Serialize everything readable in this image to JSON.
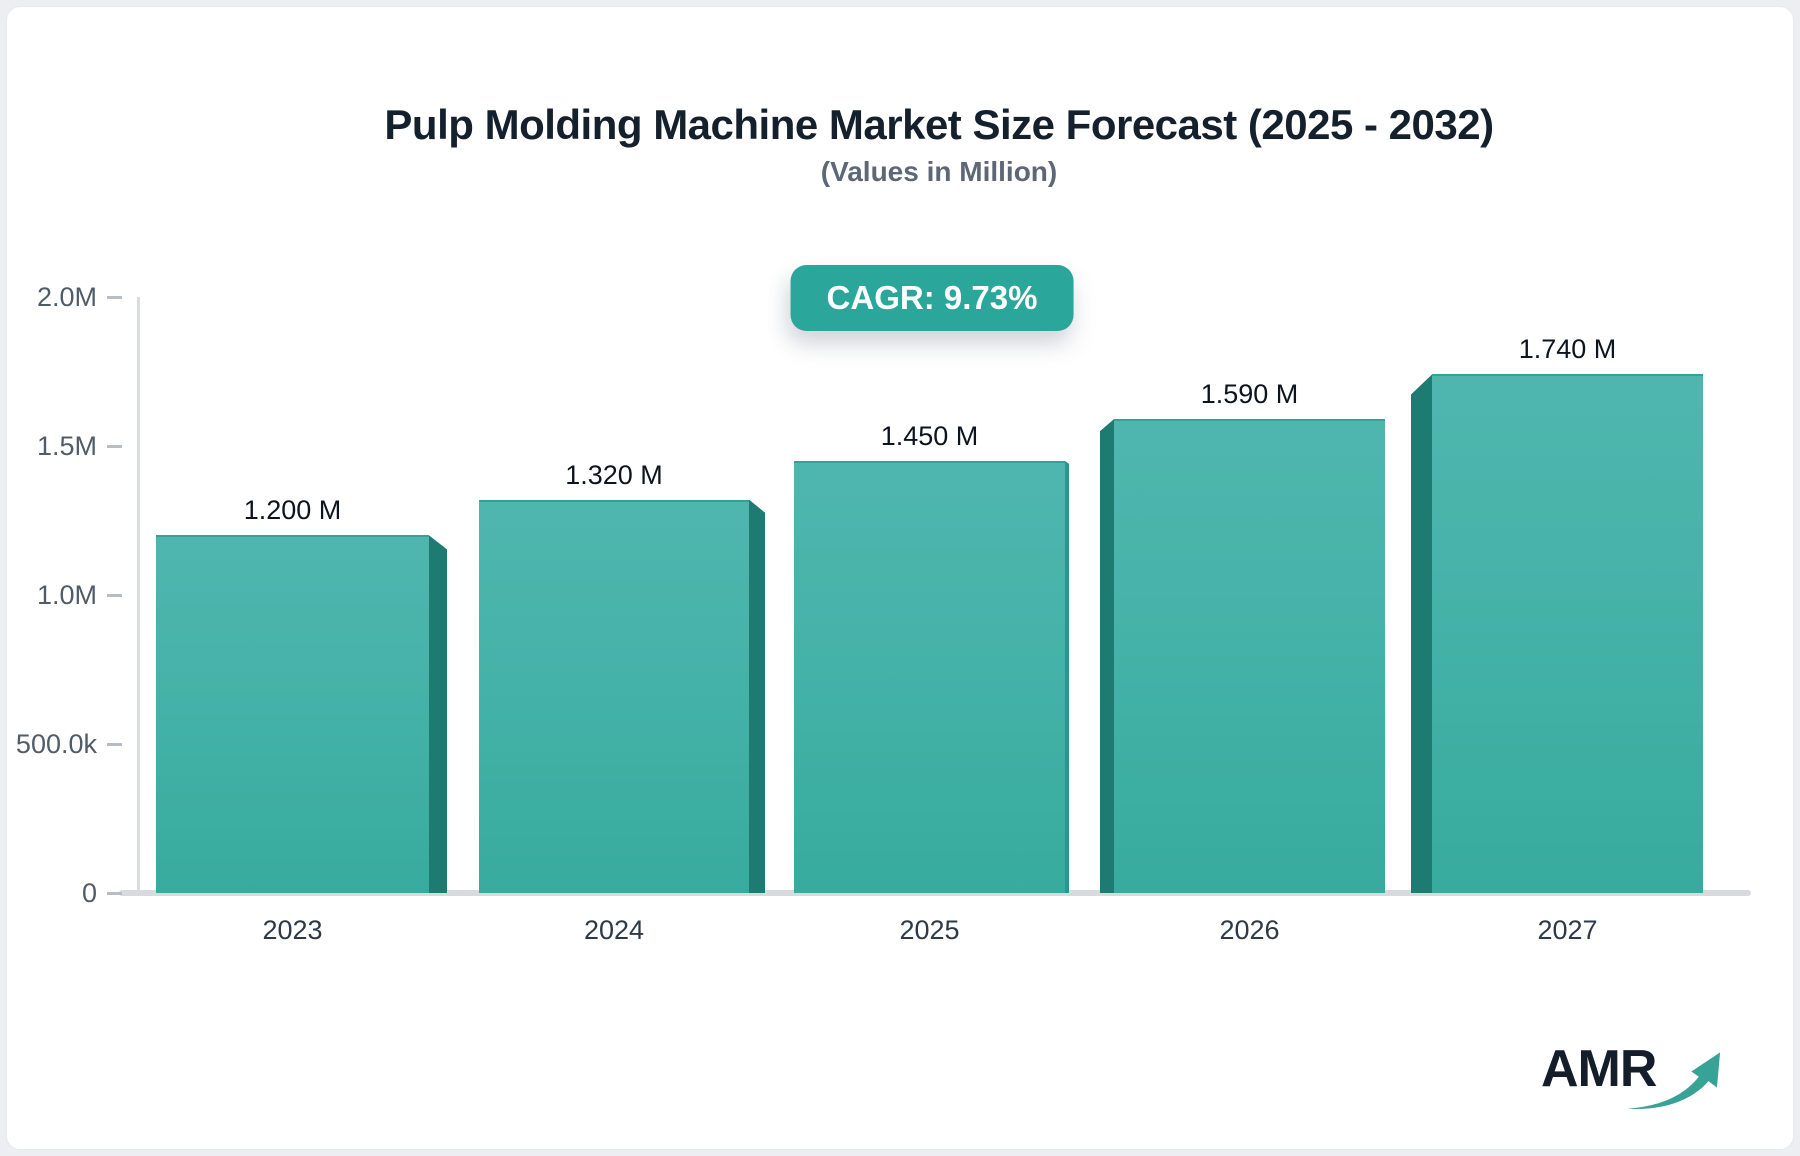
{
  "page": {
    "background": "#eceef1",
    "card_background": "#ffffff"
  },
  "header": {
    "title": "Pulp Molding Machine Market Size Forecast (2025 - 2032)",
    "subtitle": "(Values in Million)"
  },
  "badge": {
    "label": "CAGR: 9.73%",
    "background": "#2aa69b",
    "text_color": "#ffffff"
  },
  "chart_data": {
    "type": "bar",
    "title": "Pulp Molding Machine Market Size Forecast (2025 - 2032)",
    "subtitle": "(Values in Million)",
    "unit": "Million",
    "cagr_percent": 9.73,
    "categories": [
      "2023",
      "2024",
      "2025",
      "2026",
      "2027"
    ],
    "values": [
      1200000,
      1320000,
      1450000,
      1590000,
      1740000
    ],
    "value_labels": [
      "1.200 M",
      "1.320 M",
      "1.450 M",
      "1.590 M",
      "1.740 M"
    ],
    "ylim": [
      0,
      2000000
    ],
    "yticks": [
      {
        "value": 0,
        "label": "0"
      },
      {
        "value": 500000,
        "label": "500.0k"
      },
      {
        "value": 1000000,
        "label": "1.0M"
      },
      {
        "value": 1500000,
        "label": "1.5M"
      },
      {
        "value": 2000000,
        "label": "2.0M"
      }
    ],
    "grid": false,
    "legend": false,
    "bar_color_top": "#4fb6ae",
    "bar_color_bottom": "#37ab9e",
    "bar_side_color": "#1e7b72",
    "effect": "3d-extruded-bars"
  },
  "footer": {
    "logo_text": "AMR",
    "logo_arrow_color": "#38a296"
  }
}
